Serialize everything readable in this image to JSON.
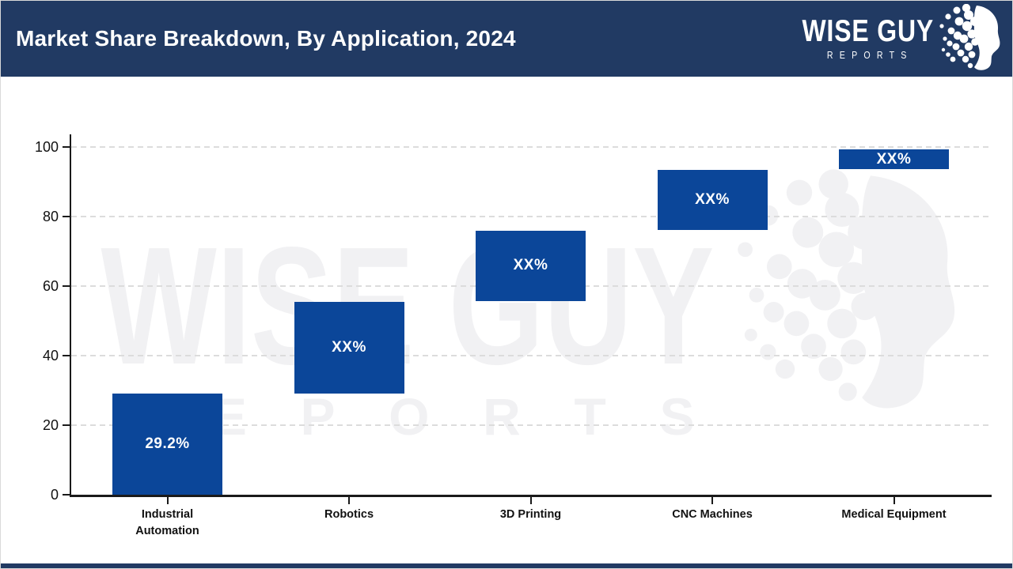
{
  "header": {
    "title": "Market Share Breakdown, By Application, 2024",
    "logo": {
      "brand_top": "WISE GUY",
      "brand_bottom": "REPORTS"
    }
  },
  "watermark": {
    "line1": "WISE GUY",
    "line2": "REPORTS"
  },
  "colors": {
    "header_bg": "#213A63",
    "footer_bg": "#213A63",
    "bar": "#0B4699",
    "bar_label": "#FFFFFF",
    "grid": "#DCDCDC",
    "axis": "#1A1A1A",
    "watermark": "#F1F1F3"
  },
  "chart_data": {
    "type": "bar",
    "variant": "waterfall",
    "title": "Market Share Breakdown, By Application, 2024",
    "unit": "%",
    "categories": [
      "Industrial\nAutomation",
      "Robotics",
      "3D Printing",
      "CNC Machines",
      "Medical Equipment"
    ],
    "segments": [
      {
        "category": "Industrial Automation",
        "start": 0,
        "end": 29.2,
        "label": "29.2%"
      },
      {
        "category": "Robotics",
        "start": 29.1,
        "end": 55.5,
        "label": "XX%"
      },
      {
        "category": "3D Printing",
        "start": 55.7,
        "end": 75.9,
        "label": "XX%"
      },
      {
        "category": "CNC Machines",
        "start": 76.2,
        "end": 93.4,
        "label": "XX%"
      },
      {
        "category": "Medical Equipment",
        "start": 93.6,
        "end": 99.3,
        "label": "XX%"
      }
    ],
    "yticks": [
      0,
      20,
      40,
      60,
      80,
      100
    ],
    "ylim": [
      0,
      103.6
    ],
    "xlabel": "",
    "ylabel": "",
    "grid": "horizontal-dashed",
    "legend": "none"
  }
}
